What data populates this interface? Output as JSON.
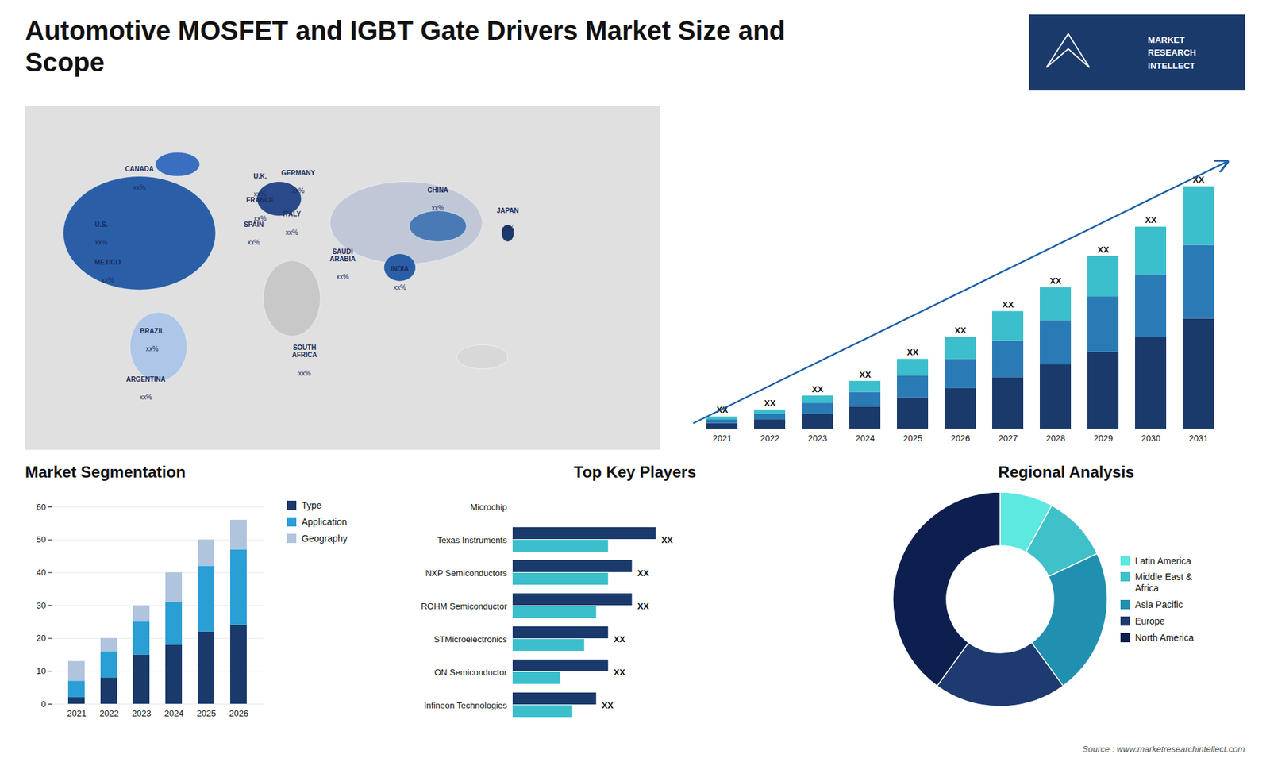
{
  "chart_data": [
    {
      "type": "map",
      "title": "Automotive MOSFET and IGBT Gate Drivers Market Size and\nScope",
      "categories": [
        "CANADA",
        "U.S.",
        "MEXICO",
        "BRAZIL",
        "ARGENTINA",
        "U.K.",
        "FRANCE",
        "SPAIN",
        "GERMANY",
        "ITALY",
        "SAUDI\nARABIA",
        "SOUTH\nAFRICA",
        "CHINA",
        "INDIA",
        "JAPAN"
      ],
      "value_labels": [
        "xx%",
        "xx%",
        "xx%",
        "xx%",
        "xx%",
        "xx%",
        "xx%",
        "xx%",
        "xx%",
        "xx%",
        "xx%",
        "xx%",
        "xx%",
        "xx%",
        "xx%"
      ],
      "annotations": [
        "MARKET\nRESEARCH\nINTELLECT",
        "Source : www.marketresearchintellect.com"
      ]
    },
    {
      "type": "bar",
      "stacked": true,
      "categories": [
        "2021",
        "2022",
        "2023",
        "2024",
        "2025",
        "2026",
        "2027",
        "2028",
        "2029",
        "2030",
        "2031"
      ],
      "series": [
        {
          "color": "#1a3a6b",
          "values": [
            1.5,
            2.5,
            4,
            6,
            8.5,
            11,
            14,
            17.5,
            21,
            25,
            30
          ]
        },
        {
          "color": "#2a7ab5",
          "values": [
            1.0,
            1.5,
            3,
            4,
            6,
            8,
            10,
            12,
            15,
            17,
            20
          ]
        },
        {
          "color": "#3bbfcc",
          "values": [
            0.8,
            1.2,
            2,
            3,
            4.5,
            6,
            8,
            9,
            11,
            13,
            16
          ]
        }
      ],
      "ylim": [
        0,
        82.5
      ],
      "tick_labels": "x",
      "annotations": [
        "XX",
        "XX",
        "XX",
        "XX",
        "XX",
        "XX",
        "XX",
        "XX",
        "XX",
        "XX",
        "XX"
      ]
    },
    {
      "type": "bar",
      "title": "Market Segmentation",
      "stacked": true,
      "categories": [
        "2021",
        "2022",
        "2023",
        "2024",
        "2025",
        "2026"
      ],
      "series": [
        {
          "name": "Type",
          "color": "#1a3a6b",
          "values": [
            2,
            8,
            15,
            18,
            22,
            24
          ]
        },
        {
          "name": "Application",
          "color": "#2a9fd6",
          "values": [
            5,
            8,
            10,
            13,
            20,
            23
          ]
        },
        {
          "name": "Geography",
          "color": "#b0c4de",
          "values": [
            6,
            4,
            5,
            9,
            8,
            9
          ]
        }
      ],
      "ylim": [
        0,
        60
      ],
      "yticks": [
        0,
        10,
        20,
        30,
        40,
        50,
        60
      ],
      "grid": true,
      "legend": "right"
    },
    {
      "type": "bar",
      "title": "Top Key Players",
      "orientation": "horizontal",
      "categories": [
        "Microchip",
        "Texas Instruments",
        "NXP Semiconductors",
        "ROHM Semiconductor",
        "STMicroelectronics",
        "ON Semiconductor",
        "Infineon Technologies"
      ],
      "series": [
        {
          "color": "#1a3a6b",
          "values": [
            0,
            6,
            5,
            5,
            4,
            4,
            3.5
          ]
        },
        {
          "color": "#3bbfcc",
          "values": [
            0,
            4,
            4,
            3.5,
            3,
            2,
            2.5
          ]
        }
      ],
      "xlim": [
        0,
        14
      ],
      "tick_labels": "y",
      "annotations": [
        "XX",
        "XX",
        "XX",
        "XX",
        "XX",
        "XX"
      ]
    },
    {
      "type": "pie",
      "title": "Regional Analysis",
      "categories": [
        "Latin America",
        "Middle East &\nAfrica",
        "Asia Pacific",
        "Europe",
        "North America"
      ],
      "values": [
        8,
        10,
        22,
        20,
        40
      ],
      "colors": [
        "#5de8e0",
        "#40c0c8",
        "#2090b0",
        "#1e3a70",
        "#0d1f4e"
      ],
      "legend": "right"
    }
  ]
}
